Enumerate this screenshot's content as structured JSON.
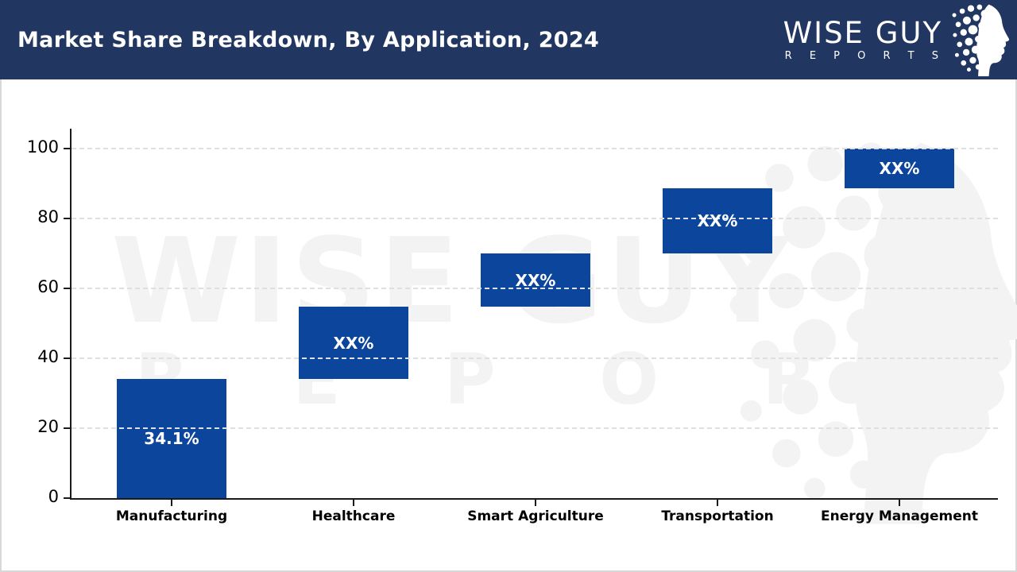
{
  "header": {
    "title": "Market Share Breakdown, By Application, 2024",
    "logo": {
      "line1": "WISE GUY",
      "line2": "R E P O R T S"
    }
  },
  "watermark": {
    "line1": "WISE GUY",
    "line2": "R E P O R T S"
  },
  "chart_data": {
    "type": "bar",
    "subtype": "waterfall",
    "title": "Market Share Breakdown, By Application, 2024",
    "xlabel": "",
    "ylabel": "",
    "categories": [
      "Manufacturing",
      "Healthcare",
      "Smart Agriculture",
      "Transportation",
      "Energy Management"
    ],
    "segments": [
      {
        "category": "Manufacturing",
        "start": 0,
        "end": 34.1,
        "label": "34.1%"
      },
      {
        "category": "Healthcare",
        "start": 34.1,
        "end": 54.7,
        "label": "XX%"
      },
      {
        "category": "Smart Agriculture",
        "start": 54.7,
        "end": 70.0,
        "label": "XX%"
      },
      {
        "category": "Transportation",
        "start": 70.0,
        "end": 88.6,
        "label": "XX%"
      },
      {
        "category": "Energy Management",
        "start": 88.6,
        "end": 100.0,
        "label": "XX%"
      }
    ],
    "yticks": [
      0,
      20,
      40,
      60,
      80,
      100
    ],
    "ylim": [
      0,
      105
    ],
    "grid": "horizontal-dashed",
    "legend": "none",
    "bar_color": "#0C459C",
    "header_color": "#213661"
  }
}
